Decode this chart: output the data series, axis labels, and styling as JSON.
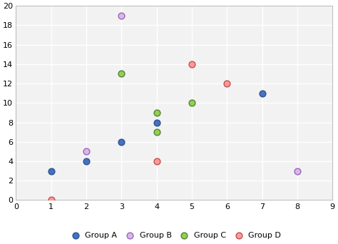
{
  "groups": {
    "Group A": {
      "x": [
        1,
        2,
        3,
        4,
        7
      ],
      "y": [
        3,
        4,
        6,
        8,
        11
      ],
      "face_color": "#4472C4",
      "edge_color": "#2F528F"
    },
    "Group B": {
      "x": [
        2,
        3,
        8
      ],
      "y": [
        5,
        19,
        3
      ],
      "face_color": "#D9B8E8",
      "edge_color": "#9966BB"
    },
    "Group C": {
      "x": [
        3,
        4,
        4,
        5
      ],
      "y": [
        13,
        9,
        7,
        10
      ],
      "face_color": "#92D050",
      "edge_color": "#548235"
    },
    "Group D": {
      "x": [
        1,
        4,
        5,
        6
      ],
      "y": [
        0,
        4,
        14,
        12
      ],
      "face_color": "#FF9999",
      "edge_color": "#C0504D"
    }
  },
  "xlim": [
    0,
    9
  ],
  "ylim": [
    0,
    20
  ],
  "xticks": [
    0,
    1,
    2,
    3,
    4,
    5,
    6,
    7,
    8,
    9
  ],
  "yticks": [
    0,
    2,
    4,
    6,
    8,
    10,
    12,
    14,
    16,
    18,
    20
  ],
  "marker_size": 40,
  "linewidth": 1.0,
  "background_color": "#FFFFFF",
  "plot_bg_color": "#F2F2F2",
  "grid_color": "#FFFFFF",
  "grid_linewidth": 1.0,
  "tick_fontsize": 8,
  "legend_fontsize": 8,
  "legend_order": [
    "Group A",
    "Group B",
    "Group C",
    "Group D"
  ]
}
